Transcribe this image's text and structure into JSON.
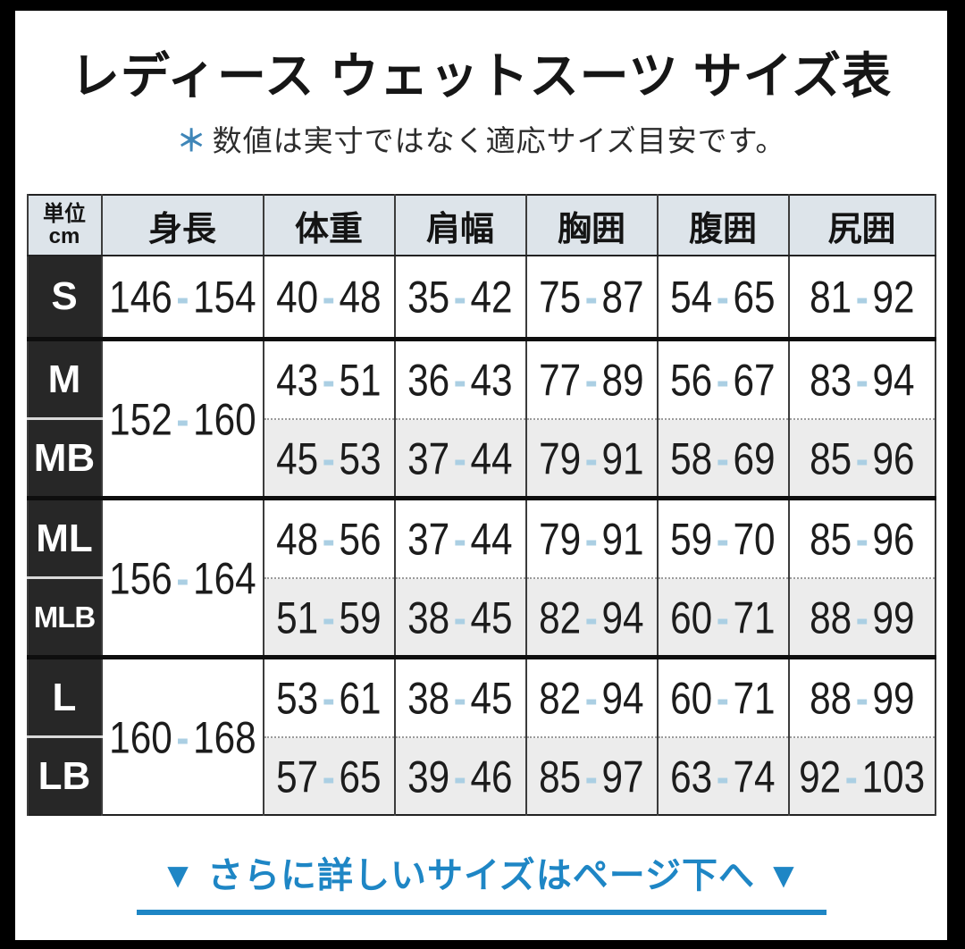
{
  "colors": {
    "accent_blue": "#1e86c5",
    "dash_blue": "#abcfe3",
    "header_bg": "#dde4ea",
    "label_bg": "#272727",
    "alt_row_bg": "#ececec",
    "frame_border": "#000000"
  },
  "chart_data": {
    "type": "table",
    "title": "レディース ウェットスーツ サイズ表",
    "note_mark": "＊",
    "note_text": "数値は実寸ではなく適応サイズ目安です。",
    "unit": {
      "line1": "単位",
      "line2": "cm"
    },
    "columns": [
      "身長",
      "体重",
      "肩幅",
      "胸囲",
      "腹囲",
      "尻囲"
    ],
    "dash": "-",
    "rows": [
      {
        "size": "S",
        "height": {
          "min": "146",
          "max": "154"
        },
        "weight": {
          "min": "40",
          "max": "48"
        },
        "shoulder": {
          "min": "35",
          "max": "42"
        },
        "chest": {
          "min": "75",
          "max": "87"
        },
        "belly": {
          "min": "54",
          "max": "65"
        },
        "hip": {
          "min": "81",
          "max": "92"
        }
      },
      {
        "size": "M",
        "height": {
          "min": "152",
          "max": "160"
        },
        "weight": {
          "min": "43",
          "max": "51"
        },
        "shoulder": {
          "min": "36",
          "max": "43"
        },
        "chest": {
          "min": "77",
          "max": "89"
        },
        "belly": {
          "min": "56",
          "max": "67"
        },
        "hip": {
          "min": "83",
          "max": "94"
        }
      },
      {
        "size": "MB",
        "weight": {
          "min": "45",
          "max": "53"
        },
        "shoulder": {
          "min": "37",
          "max": "44"
        },
        "chest": {
          "min": "79",
          "max": "91"
        },
        "belly": {
          "min": "58",
          "max": "69"
        },
        "hip": {
          "min": "85",
          "max": "96"
        }
      },
      {
        "size": "ML",
        "height": {
          "min": "156",
          "max": "164"
        },
        "weight": {
          "min": "48",
          "max": "56"
        },
        "shoulder": {
          "min": "37",
          "max": "44"
        },
        "chest": {
          "min": "79",
          "max": "91"
        },
        "belly": {
          "min": "59",
          "max": "70"
        },
        "hip": {
          "min": "85",
          "max": "96"
        }
      },
      {
        "size": "MLB",
        "weight": {
          "min": "51",
          "max": "59"
        },
        "shoulder": {
          "min": "38",
          "max": "45"
        },
        "chest": {
          "min": "82",
          "max": "94"
        },
        "belly": {
          "min": "60",
          "max": "71"
        },
        "hip": {
          "min": "88",
          "max": "99"
        }
      },
      {
        "size": "L",
        "height": {
          "min": "160",
          "max": "168"
        },
        "weight": {
          "min": "53",
          "max": "61"
        },
        "shoulder": {
          "min": "38",
          "max": "45"
        },
        "chest": {
          "min": "82",
          "max": "94"
        },
        "belly": {
          "min": "60",
          "max": "71"
        },
        "hip": {
          "min": "88",
          "max": "99"
        }
      },
      {
        "size": "LB",
        "weight": {
          "min": "57",
          "max": "65"
        },
        "shoulder": {
          "min": "39",
          "max": "46"
        },
        "chest": {
          "min": "85",
          "max": "97"
        },
        "belly": {
          "min": "63",
          "max": "74"
        },
        "hip": {
          "min": "92",
          "max": "103"
        }
      }
    ]
  },
  "footer": {
    "label": "▼ さらに詳しいサイズはページ下へ ▼"
  }
}
